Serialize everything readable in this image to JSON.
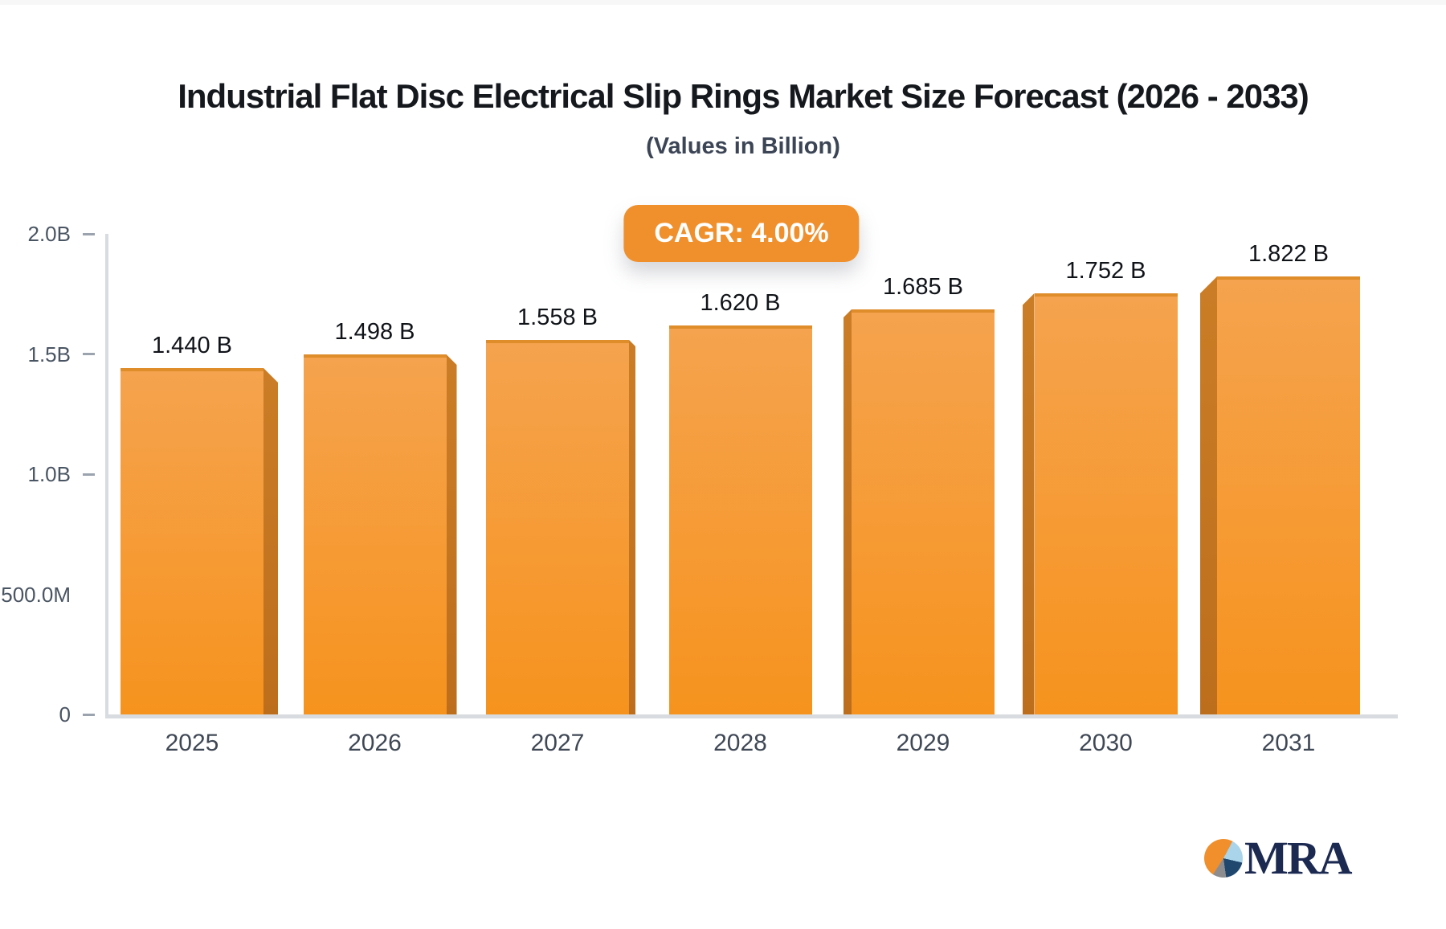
{
  "title": "Industrial Flat Disc Electrical Slip Rings Market Size Forecast (2026 - 2033)",
  "subtitle": "(Values in Billion)",
  "cagr_label": "CAGR: 4.00%",
  "logo": {
    "text": "MRA",
    "icon": "pie-chart-logo-icon"
  },
  "colors": {
    "bar_top": "#F5A34E",
    "bar_bottom": "#F6931E",
    "bar_side": "#C3731F",
    "bar_top_edge": "#DF8C2B",
    "badge_bg": "#F0902C",
    "badge_text": "#FFFFFF",
    "axis_line": "#D8DBDF",
    "tick_dash": "#9AA3AE",
    "ytick_text": "#4A5563",
    "xtick_text": "#3F4855",
    "title_text": "#15181D",
    "subtitle_text": "#3C4555",
    "logo_navy": "#1C2A52",
    "logo_light_blue": "#A9D4E9",
    "logo_gray": "#8D8D90",
    "logo_orange": "#F08F2B"
  },
  "chart_data": {
    "type": "bar",
    "title": "Industrial Flat Disc Electrical Slip Rings Market Size Forecast (2026 - 2033)",
    "subtitle": "(Values in Billion)",
    "annotation": "CAGR: 4.00%",
    "categories": [
      "2025",
      "2026",
      "2027",
      "2028",
      "2029",
      "2030",
      "2031"
    ],
    "values": [
      1.44,
      1.498,
      1.558,
      1.62,
      1.685,
      1.752,
      1.822
    ],
    "value_labels": [
      "1.440 B",
      "1.498 B",
      "1.558 B",
      "1.620 B",
      "1.685 B",
      "1.752 B",
      "1.822 B"
    ],
    "xlabel": "",
    "ylabel": "",
    "ylim": [
      0,
      2.0
    ],
    "grid": false,
    "legend": false,
    "yticks": [
      {
        "value": 0,
        "label": "0",
        "dash": true
      },
      {
        "value": 0.5,
        "label": "500.0M",
        "dash": false
      },
      {
        "value": 1.0,
        "label": "1.0B",
        "dash": true
      },
      {
        "value": 1.5,
        "label": "1.5B",
        "dash": true
      },
      {
        "value": 2.0,
        "label": "2.0B",
        "dash": true
      }
    ]
  }
}
